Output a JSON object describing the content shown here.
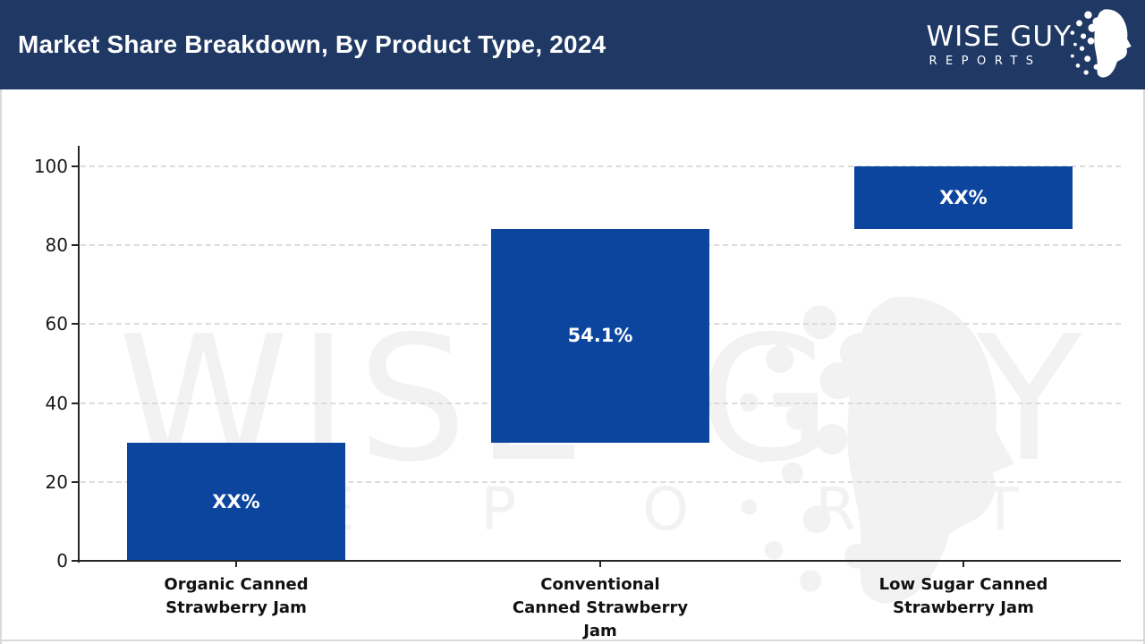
{
  "header": {
    "title": "Market Share Breakdown, By Product Type, 2024",
    "logo": {
      "line1": "WISE GUY",
      "line2": "REPORTS",
      "icon": "face-dots-icon"
    }
  },
  "watermark": {
    "line1": "WISE GUY",
    "line2": "R E P O R T S"
  },
  "colors": {
    "header_bg": "#1f3864",
    "bar": "#0b459e",
    "grid": "#dcdcdc",
    "axis": "#262626",
    "watermark": "#f2f2f2"
  },
  "chart_data": {
    "type": "bar",
    "subtype": "waterfall",
    "title": "Market Share Breakdown, By Product Type, 2024",
    "categories": [
      [
        "Organic Canned",
        "Strawberry Jam"
      ],
      [
        "Conventional",
        "Canned Strawberry",
        "Jam"
      ],
      [
        "Low Sugar Canned",
        "Strawberry Jam"
      ]
    ],
    "bars": [
      {
        "category": "Organic Canned Strawberry Jam",
        "start": 0,
        "end": 30,
        "label": "XX%"
      },
      {
        "category": "Conventional Canned Strawberry Jam",
        "start": 30,
        "end": 84.1,
        "label": "54.1%",
        "value": 54.1
      },
      {
        "category": "Low Sugar Canned Strawberry Jam",
        "start": 84.1,
        "end": 100,
        "label": "XX%"
      }
    ],
    "xlabel": "",
    "ylabel": "",
    "ylim": [
      0,
      100
    ],
    "yticks": [
      0,
      20,
      40,
      60,
      80,
      100
    ],
    "grid": "horizontal-dashed",
    "legend": "none"
  }
}
